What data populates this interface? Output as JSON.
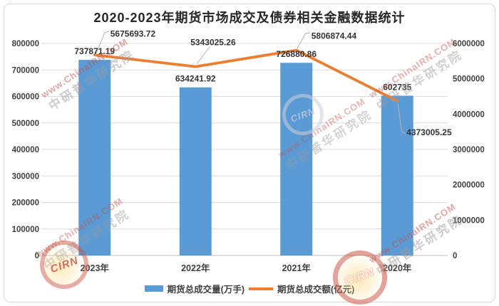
{
  "title": "2020-2023年期货市场成交及债券相关金融数据统计",
  "chart_data": {
    "type": "bar+line",
    "categories": [
      "2023年",
      "2022年",
      "2021年",
      "2020年"
    ],
    "series": [
      {
        "name": "期货总成交量(万手)",
        "type": "bar",
        "axis": "left",
        "color": "#5b9bd5",
        "values": [
          737871.19,
          634241.92,
          726880.86,
          602735
        ],
        "labels": [
          "737871.19",
          "634241.92",
          "726880.86",
          "602735"
        ]
      },
      {
        "name": "期货总成交额(亿元)",
        "type": "line",
        "axis": "right",
        "color": "#ed7d31",
        "values": [
          5675693.72,
          5343025.26,
          5806874.44,
          4373005.25
        ],
        "labels": [
          "5675693.72",
          "5343025.26",
          "5806874.44",
          "4373005.25"
        ]
      }
    ],
    "left_axis": {
      "min": 0,
      "max": 800000,
      "step": 100000,
      "ticks": [
        "0",
        "100000",
        "200000",
        "300000",
        "400000",
        "500000",
        "600000",
        "700000",
        "800000"
      ]
    },
    "right_axis": {
      "min": 0,
      "max": 6000000,
      "step": 1000000,
      "ticks": [
        "0",
        "1000000",
        "2000000",
        "3000000",
        "4000000",
        "5000000",
        "6000000"
      ]
    },
    "grid": true,
    "legend_position": "bottom"
  },
  "legend": {
    "items": [
      {
        "label": "期货总成交量(万手)",
        "marker": "bar",
        "color": "#5b9bd5"
      },
      {
        "label": "期货总成交额(亿元)",
        "marker": "line",
        "color": "#ed7d31"
      }
    ]
  },
  "watermark": {
    "url_text": "www.ChinaIRN.COM",
    "org_text": "中研普华研究院",
    "logo_text": "CIRN"
  },
  "colors": {
    "bar": "#5b9bd5",
    "line": "#ed7d31",
    "grid": "#dcdcdc",
    "axis_line": "#bfbfbf",
    "axis_text": "#404040",
    "value_text": "#333333",
    "frame_border": "#d9d9d9",
    "leader": "#b3b3b3",
    "watermark_red": "#c0504d",
    "watermark_gray": "#999999"
  }
}
